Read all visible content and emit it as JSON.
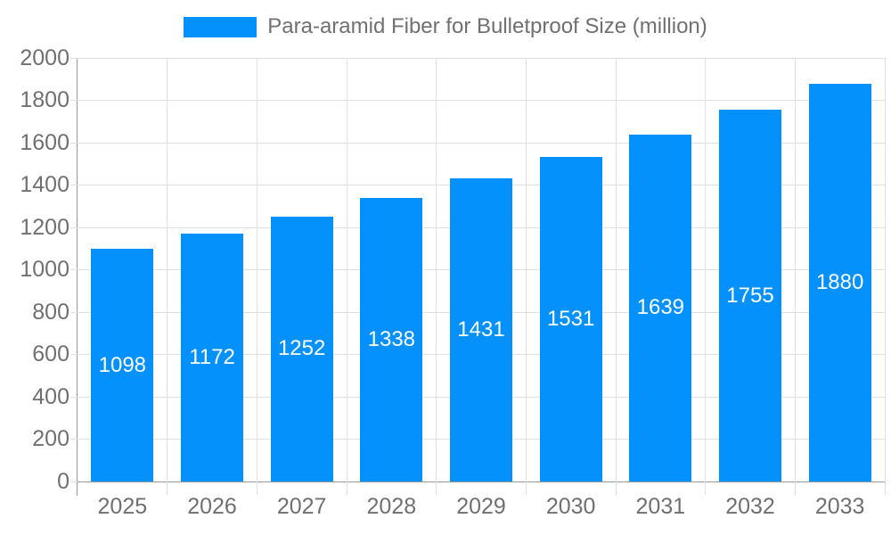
{
  "chart_data": {
    "type": "bar",
    "title": "Para-aramid Fiber for Bulletproof Size (million)",
    "categories": [
      "2025",
      "2026",
      "2027",
      "2028",
      "2029",
      "2030",
      "2031",
      "2032",
      "2033"
    ],
    "values": [
      1098,
      1172,
      1252,
      1338,
      1431,
      1531,
      1639,
      1755,
      1880
    ],
    "xlabel": "",
    "ylabel": "",
    "ylim": [
      0,
      2000
    ],
    "y_ticks": [
      0,
      200,
      400,
      600,
      800,
      1000,
      1200,
      1400,
      1600,
      1800,
      2000
    ],
    "grid": true,
    "legend_position": "top-center",
    "value_labels": "inside-center"
  },
  "colors": {
    "bar": "#0591fb",
    "bar_label": "#ffffff",
    "axis_text": "#707070",
    "legend_text": "#707070",
    "gridline": "#e0e0e0",
    "axis_line": "#999999"
  }
}
